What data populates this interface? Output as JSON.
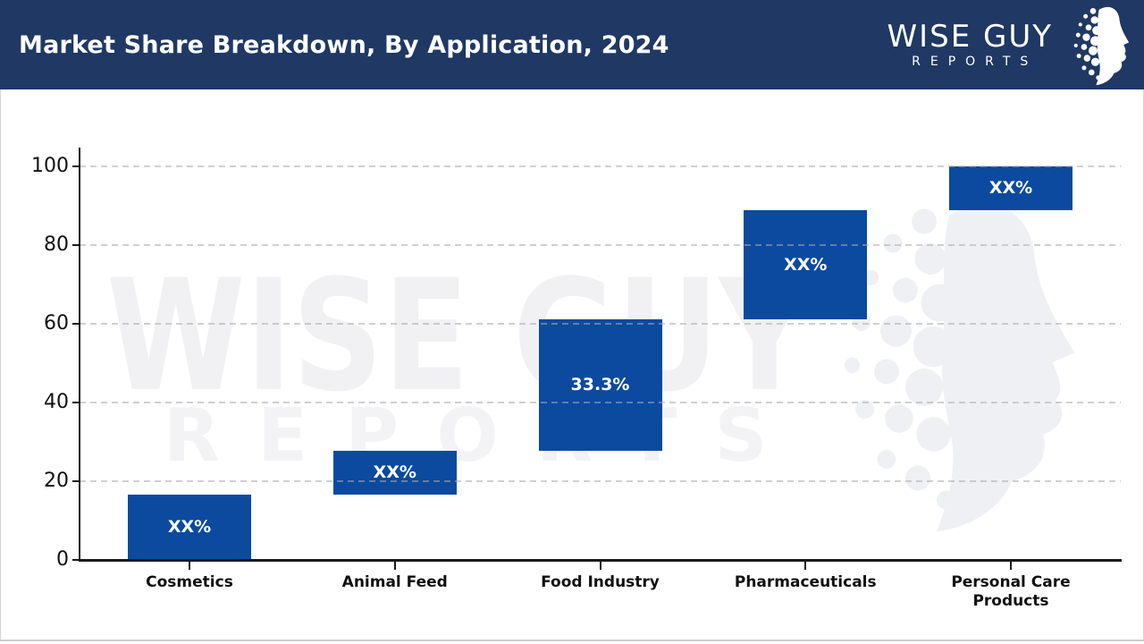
{
  "header": {
    "title": "Market Share Breakdown, By Application, 2024",
    "bg_color": "#1f3864",
    "logo": {
      "line1": "WISE GUY",
      "line2": "REPORTS"
    }
  },
  "watermark": {
    "line1": "WISE GUY",
    "line2": "REPORTS"
  },
  "chart_data": {
    "type": "bar",
    "subtype": "floating-segment-waterfall",
    "title": "Market Share Breakdown, By Application, 2024",
    "xlabel": "",
    "ylabel": "",
    "categories": [
      "Cosmetics",
      "Animal Feed",
      "Food Industry",
      "Pharmaceuticals",
      "Personal Care Products"
    ],
    "segments": [
      {
        "category": "Cosmetics",
        "start": 0,
        "end": 16.7,
        "label": "XX%"
      },
      {
        "category": "Animal Feed",
        "start": 16.7,
        "end": 27.8,
        "label": "XX%"
      },
      {
        "category": "Food Industry",
        "start": 27.8,
        "end": 61.1,
        "label": "33.3%"
      },
      {
        "category": "Pharmaceuticals",
        "start": 61.1,
        "end": 88.9,
        "label": "XX%"
      },
      {
        "category": "Personal Care Products",
        "start": 88.9,
        "end": 100,
        "label": "XX%"
      }
    ],
    "yticks": [
      0,
      20,
      40,
      60,
      80,
      100
    ],
    "ylim": [
      0,
      105
    ],
    "grid": "horizontal-dashed",
    "legend_position": "none",
    "bar_color": "#0b4a9f",
    "bar_label_color": "#ffffff"
  }
}
